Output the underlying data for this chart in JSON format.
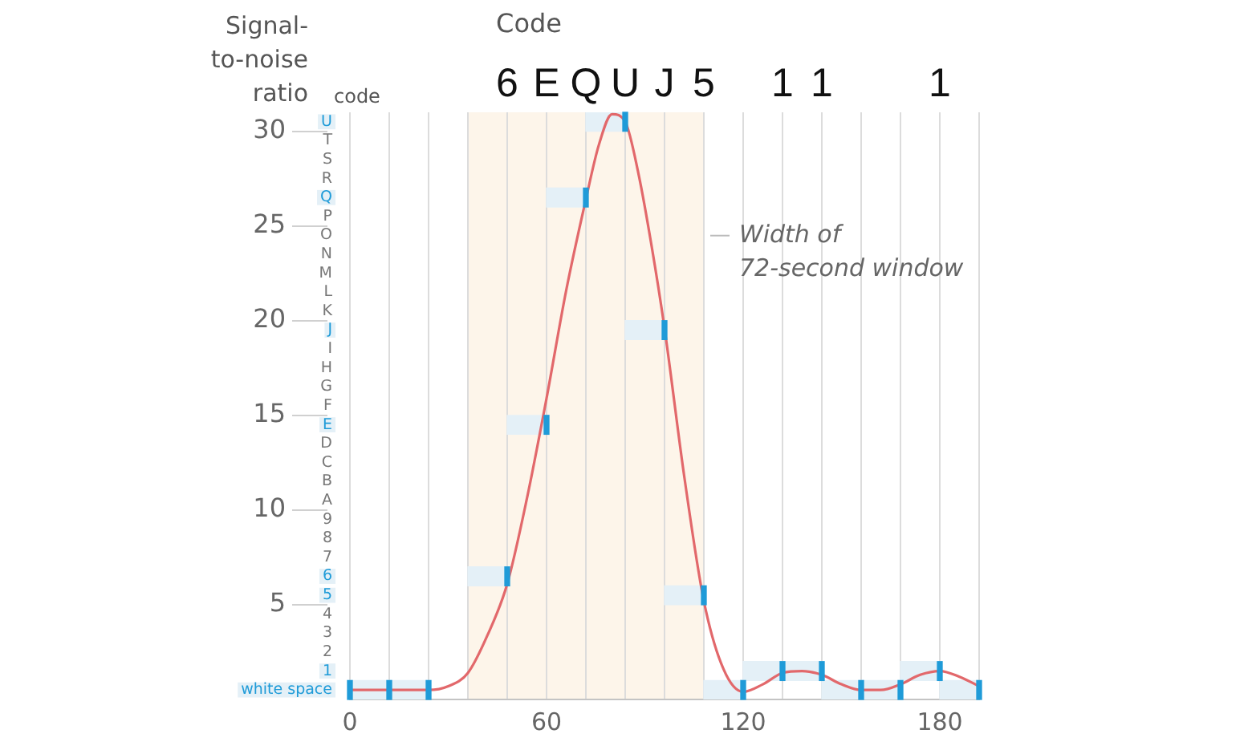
{
  "chart_data": {
    "type": "line",
    "ylabel": "Signal-to-noise ratio",
    "y2label": "code",
    "annotations": [
      "Code",
      "6",
      "E",
      "Q",
      "U",
      "J",
      "5",
      "1",
      "1",
      "1"
    ],
    "xlim": [
      0,
      192
    ],
    "xticks": [
      0,
      {
        "value": 12,
        "label": null
      },
      {
        "value": 24,
        "label": null
      },
      {
        "value": 36,
        "label": null
      },
      {
        "value": 48,
        "label": null
      },
      60,
      {
        "value": 72,
        "label": null
      },
      {
        "value": 84,
        "label": null
      },
      {
        "value": 96,
        "label": null
      },
      {
        "value": 108,
        "label": null
      },
      120,
      {
        "value": 132,
        "label": null
      },
      {
        "value": 144,
        "label": null
      },
      {
        "value": 156,
        "label": null
      },
      {
        "value": 168,
        "label": null
      },
      180,
      {
        "value": 192,
        "label": null
      }
    ],
    "ylim": [
      0,
      31
    ],
    "yticks": [
      5,
      10,
      15,
      20,
      25,
      30
    ],
    "y2lim": [
      0,
      31
    ],
    "y2ticks": [
      {
        "value": 0.5,
        "label": "white space"
      },
      {
        "value": 1.5,
        "label": "1"
      },
      {
        "value": 2.5,
        "label": "2"
      },
      {
        "value": 3.5,
        "label": "3"
      },
      {
        "value": 4.5,
        "label": "4"
      },
      {
        "value": 5.5,
        "label": "5"
      },
      {
        "value": 6.5,
        "label": "6"
      },
      {
        "value": 7.5,
        "label": "7"
      },
      {
        "value": 8.5,
        "label": "8"
      },
      {
        "value": 9.5,
        "label": "9"
      },
      {
        "value": 10.5,
        "label": "A"
      },
      {
        "value": 11.5,
        "label": "B"
      },
      {
        "value": 12.5,
        "label": "C"
      },
      {
        "value": 13.5,
        "label": "D"
      },
      {
        "value": 14.5,
        "label": "E"
      },
      {
        "value": 15.5,
        "label": "F"
      },
      {
        "value": 16.5,
        "label": "G"
      },
      {
        "value": 17.5,
        "label": "H"
      },
      {
        "value": 18.5,
        "label": "I"
      },
      {
        "value": 19.5,
        "label": "J"
      },
      {
        "value": 20.5,
        "label": "K"
      },
      {
        "value": 21.5,
        "label": "L"
      },
      {
        "value": 22.5,
        "label": "M"
      },
      {
        "value": 23.5,
        "label": "N"
      },
      {
        "value": 24.5,
        "label": "O"
      },
      {
        "value": 25.5,
        "label": "P"
      },
      {
        "value": 26.5,
        "label": "Q"
      },
      {
        "value": 27.5,
        "label": "R"
      },
      {
        "value": 28.5,
        "label": "S"
      },
      {
        "value": 29.5,
        "label": "T"
      },
      {
        "value": 30.5,
        "label": "U"
      }
    ],
    "grid": "x",
    "legend": false,
    "bands": [
      {
        "axis": "x",
        "from": 36,
        "to": 108,
        "label": "Width of\n72-second window",
        "color": "#fdf5ea"
      }
    ],
    "series": [
      {
        "type": "bar",
        "color": "#e4f0f7",
        "x": [
          6,
          18,
          42,
          54,
          66,
          78,
          90,
          102,
          114,
          126,
          138,
          150,
          162,
          174,
          186
        ],
        "base": [
          0,
          0,
          6,
          14,
          26,
          30,
          19,
          5,
          0,
          1,
          1,
          0,
          0,
          1,
          0
        ],
        "values": [
          1,
          1,
          1,
          1,
          1,
          1,
          1,
          1,
          1,
          1,
          1,
          1,
          1,
          1,
          1
        ]
      },
      {
        "color": "#e2686b",
        "x": [
          0,
          12,
          24,
          30,
          36,
          42,
          48,
          54,
          60,
          66,
          72,
          76,
          80,
          84,
          88,
          92,
          96,
          102,
          108,
          114,
          120,
          126,
          132,
          138,
          144,
          150,
          156,
          162,
          168,
          174,
          180,
          186,
          192
        ],
        "values": [
          0.5,
          0.5,
          0.5,
          0.7,
          1.4,
          3.4,
          6.1,
          10.6,
          15.9,
          21.6,
          26.4,
          29.3,
          30.9,
          30.5,
          27.8,
          24.0,
          19.6,
          11.8,
          5.2,
          1.6,
          0.4,
          0.8,
          1.4,
          1.5,
          1.3,
          0.8,
          0.5,
          0.5,
          0.8,
          1.3,
          1.5,
          1.2,
          0.7
        ]
      },
      {
        "type": "bar",
        "color": "#1f9bd8",
        "x": [
          0,
          12,
          24,
          48,
          60,
          72,
          84,
          96,
          108,
          120,
          132,
          144,
          156,
          168,
          180,
          192
        ],
        "base": [
          0,
          0,
          0,
          6,
          14,
          26,
          30,
          19,
          5,
          0,
          1,
          1,
          0,
          0,
          1,
          0
        ],
        "values": [
          1,
          1,
          1,
          1,
          1,
          1,
          1,
          1,
          1,
          1,
          1,
          1,
          1,
          1,
          1,
          1
        ]
      }
    ]
  }
}
